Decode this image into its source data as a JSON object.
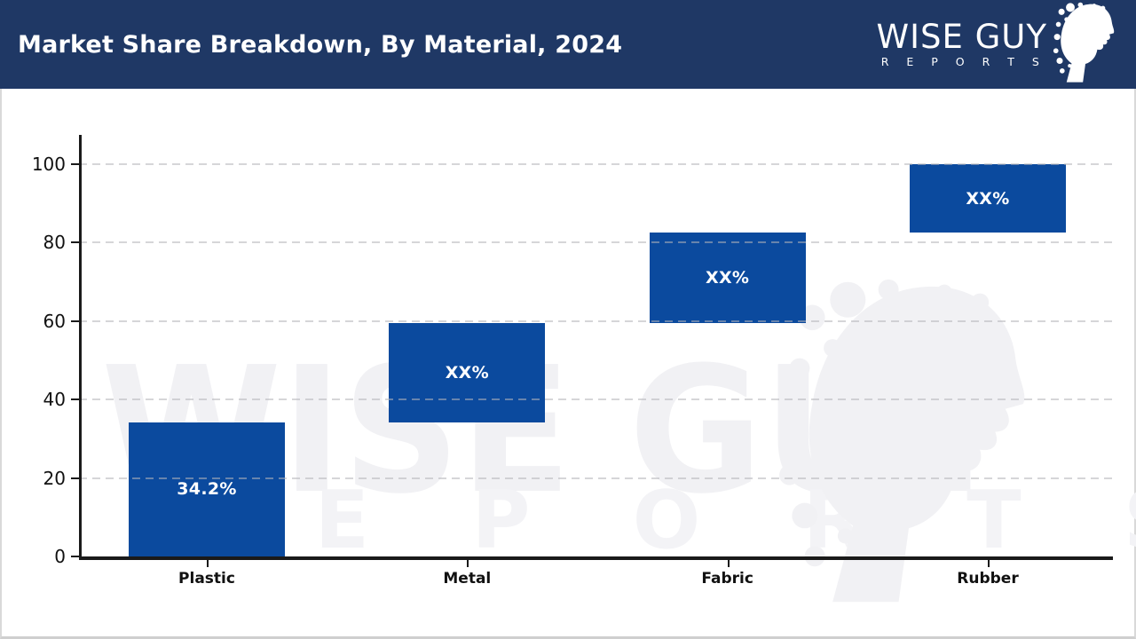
{
  "header": {
    "title": "Market Share Breakdown, By Material, 2024",
    "bg_color": "#1F3865",
    "logo": {
      "line1": "WISE GUY",
      "line2": "R E P O R T S"
    }
  },
  "watermark": {
    "line1": "WISE GUY",
    "line2": "R E P O R T S"
  },
  "chart_data": {
    "type": "bar",
    "variant": "waterfall-stacked-percentage",
    "title": "Market Share Breakdown, By Material, 2024",
    "categories": [
      "Plastic",
      "Metal",
      "Fabric",
      "Rubber"
    ],
    "segments": [
      {
        "category": "Plastic",
        "start": 0,
        "end": 34.2,
        "label": "34.2%"
      },
      {
        "category": "Metal",
        "start": 34.2,
        "end": 59.5,
        "label": "XX%"
      },
      {
        "category": "Fabric",
        "start": 59.5,
        "end": 82.5,
        "label": "XX%"
      },
      {
        "category": "Rubber",
        "start": 82.5,
        "end": 100,
        "label": "XX%"
      }
    ],
    "xlabel": "",
    "ylabel": "",
    "ylim": [
      0,
      100
    ],
    "yticks": [
      0,
      20,
      40,
      60,
      80,
      100
    ],
    "grid": "horizontal-dashed",
    "legend": "none",
    "bar_color": "#0B4A9E",
    "bar_label_color": "#FFFFFF",
    "axis_color": "#1a1a1a"
  }
}
